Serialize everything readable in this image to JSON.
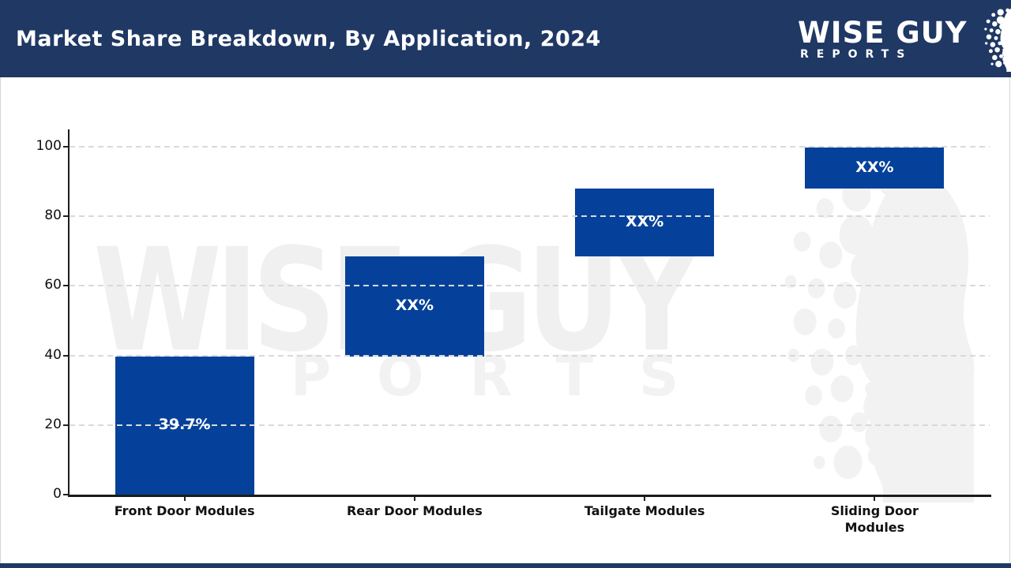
{
  "header": {
    "title": "Market Share Breakdown, By Application, 2024",
    "bg_color": "#1f3864",
    "logo": {
      "line1": "WISE GUY",
      "line2": "REPORTS"
    }
  },
  "watermark": {
    "line1": "WISE GUY",
    "line2": "REPORTS"
  },
  "chart_data": {
    "type": "bar",
    "subtype": "waterfall-floating-bars",
    "title": "Market Share Breakdown, By Application, 2024",
    "categories": [
      "Front Door Modules",
      "Rear Door Modules",
      "Tailgate Modules",
      "Sliding Door\nModules"
    ],
    "segments": [
      {
        "category": "Front Door Modules",
        "start": 0,
        "end": 39.7,
        "label": "39.7%"
      },
      {
        "category": "Rear Door Modules",
        "start": 39.7,
        "end": 68.5,
        "label": "XX%"
      },
      {
        "category": "Tailgate Modules",
        "start": 68.5,
        "end": 88.0,
        "label": "XX%"
      },
      {
        "category": "Sliding Door Modules",
        "start": 88.0,
        "end": 99.8,
        "label": "XX%"
      }
    ],
    "yticks": [
      0,
      20,
      40,
      60,
      80,
      100
    ],
    "ylim": [
      0,
      105
    ],
    "xlabel": "",
    "ylabel": "",
    "bar_color": "#05419a",
    "grid": true,
    "gridline_style": "dashed",
    "gridline_color": "#d9d9d9",
    "legend": "none"
  }
}
